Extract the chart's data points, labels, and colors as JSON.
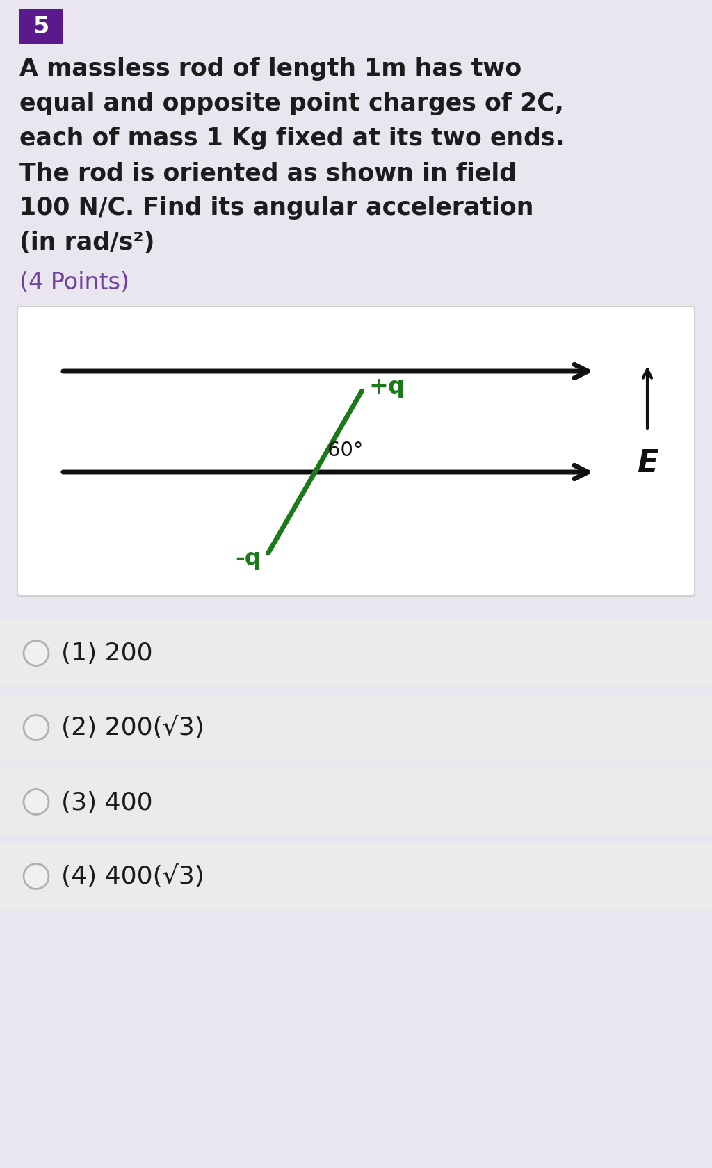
{
  "bg_color": "#e9e6f0",
  "question_number": "5",
  "question_number_bg": "#5b1a8b",
  "question_text_lines": [
    "A massless rod of length 1m has two",
    "equal and opposite point charges of 2C,",
    "each of mass 1 Kg fixed at its two ends.",
    "The rod is oriented as shown in field",
    "100 N/C. Find its angular acceleration",
    "(in rad/s²)"
  ],
  "points_text": "(4 Points)",
  "points_color": "#7040a0",
  "diagram_bg": "#ffffff",
  "diagram_border": "#c8c8c8",
  "arrow_color": "#111111",
  "rod_color": "#1a7a1a",
  "label_plus_q": "+q",
  "label_minus_q": "-q",
  "label_angle": "60°",
  "E_label": "E",
  "options": [
    "(1) 200",
    "(2) 200(√3)",
    "(3) 400",
    "(4) 400(√3)"
  ],
  "option_bg": "#ebebeb",
  "option_text_color": "#1a1a1a",
  "radio_color": "#b0b0b0",
  "radio_fill": "#f0f0f0"
}
